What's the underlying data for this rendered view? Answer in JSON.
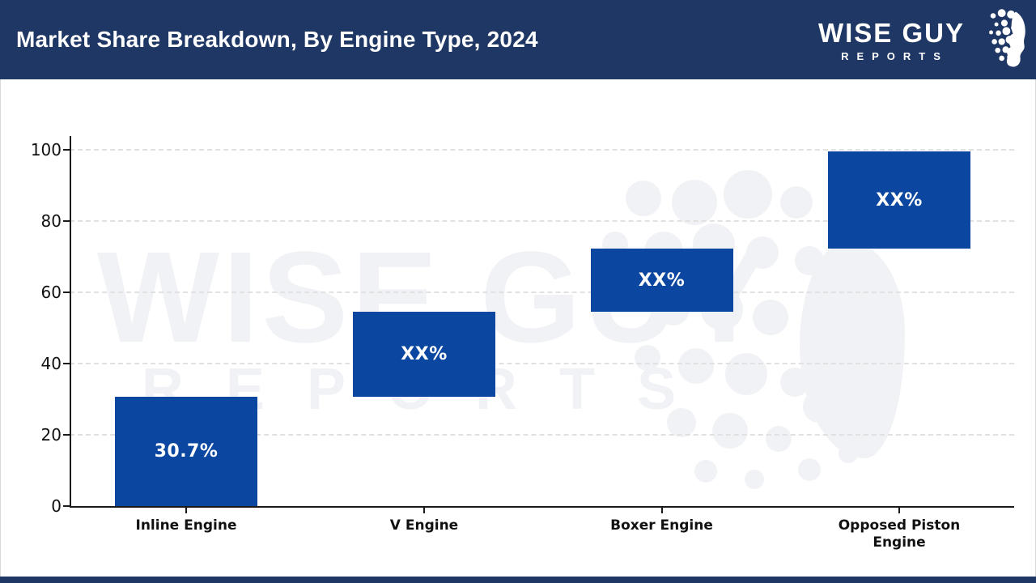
{
  "header": {
    "title": "Market Share Breakdown, By Engine Type, 2024",
    "logo": {
      "line1": "WISE GUY",
      "line2": "REPORTS"
    }
  },
  "watermark": {
    "line1": "WISE GUY",
    "line2": "REPORTS"
  },
  "chart_data": {
    "type": "bar",
    "variant": "floating-waterfall",
    "title": "Market Share Breakdown, By Engine Type, 2024",
    "categories": [
      "Inline Engine",
      "V Engine",
      "Boxer Engine",
      "Opposed Piston Engine"
    ],
    "segments": [
      {
        "category": "Inline Engine",
        "start": 0,
        "end": 30.7,
        "label": "30.7%"
      },
      {
        "category": "V Engine",
        "start": 30.7,
        "end": 54.5,
        "label": "XX%"
      },
      {
        "category": "Boxer Engine",
        "start": 54.5,
        "end": 72.2,
        "label": "XX%"
      },
      {
        "category": "Opposed Piston Engine",
        "start": 72.2,
        "end": 99.6,
        "label": "XX%"
      }
    ],
    "ylim": [
      0,
      105
    ],
    "yticks": [
      0,
      20,
      40,
      60,
      80,
      100
    ],
    "xlabel": "",
    "ylabel": "",
    "grid": "horizontal-dashed",
    "legend": "none",
    "bar_color": "#0b46a0",
    "bar_label_color": "#ffffff"
  },
  "colors": {
    "header_bg": "#1f3765",
    "footer_bg": "#1f3765",
    "bar": "#0b46a0",
    "gridline": "#e1e1e1",
    "axis": "#1a1a1a",
    "watermark": "#f1f2f5"
  }
}
